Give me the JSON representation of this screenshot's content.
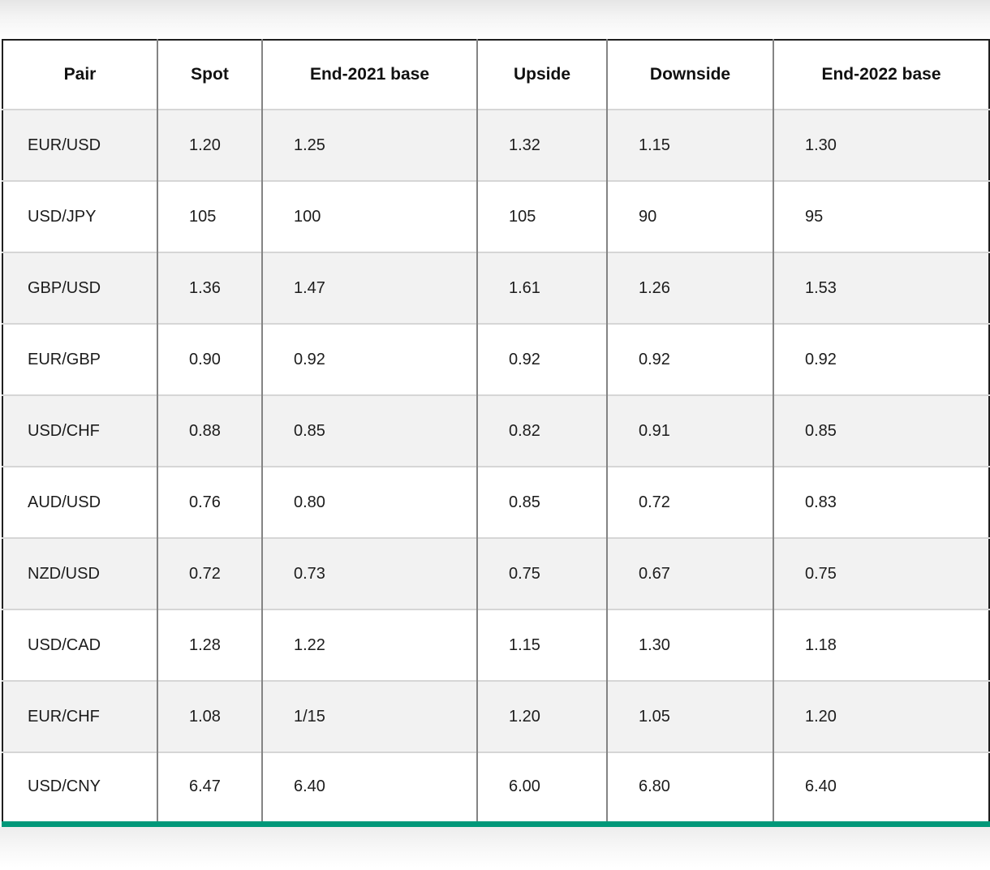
{
  "colors": {
    "accent_teal": "#009879",
    "row_alt_bg": "#f2f2f2"
  },
  "chart_data": {
    "type": "table",
    "columns": [
      "Pair",
      "Spot",
      "End-2021 base",
      "Upside",
      "Downside",
      "End-2022 base"
    ],
    "column_keys": [
      "pair",
      "spot",
      "end_2021_base",
      "upside",
      "downside",
      "end_2022_base"
    ],
    "rows": [
      {
        "pair": "EUR/USD",
        "spot": "1.20",
        "end_2021_base": "1.25",
        "upside": "1.32",
        "downside": "1.15",
        "end_2022_base": "1.30"
      },
      {
        "pair": "USD/JPY",
        "spot": "105",
        "end_2021_base": "100",
        "upside": "105",
        "downside": "90",
        "end_2022_base": "95"
      },
      {
        "pair": "GBP/USD",
        "spot": "1.36",
        "end_2021_base": "1.47",
        "upside": "1.61",
        "downside": "1.26",
        "end_2022_base": "1.53"
      },
      {
        "pair": "EUR/GBP",
        "spot": "0.90",
        "end_2021_base": "0.92",
        "upside": "0.92",
        "downside": "0.92",
        "end_2022_base": "0.92"
      },
      {
        "pair": "USD/CHF",
        "spot": "0.88",
        "end_2021_base": "0.85",
        "upside": "0.82",
        "downside": "0.91",
        "end_2022_base": "0.85"
      },
      {
        "pair": "AUD/USD",
        "spot": "0.76",
        "end_2021_base": "0.80",
        "upside": "0.85",
        "downside": "0.72",
        "end_2022_base": "0.83"
      },
      {
        "pair": "NZD/USD",
        "spot": "0.72",
        "end_2021_base": "0.73",
        "upside": "0.75",
        "downside": "0.67",
        "end_2022_base": "0.75"
      },
      {
        "pair": "USD/CAD",
        "spot": "1.28",
        "end_2021_base": "1.22",
        "upside": "1.15",
        "downside": "1.30",
        "end_2022_base": "1.18"
      },
      {
        "pair": "EUR/CHF",
        "spot": "1.08",
        "end_2021_base": "1/15",
        "upside": "1.20",
        "downside": "1.05",
        "end_2022_base": "1.20"
      },
      {
        "pair": "USD/CNY",
        "spot": "6.47",
        "end_2021_base": "6.40",
        "upside": "6.00",
        "downside": "6.80",
        "end_2022_base": "6.40"
      }
    ]
  }
}
